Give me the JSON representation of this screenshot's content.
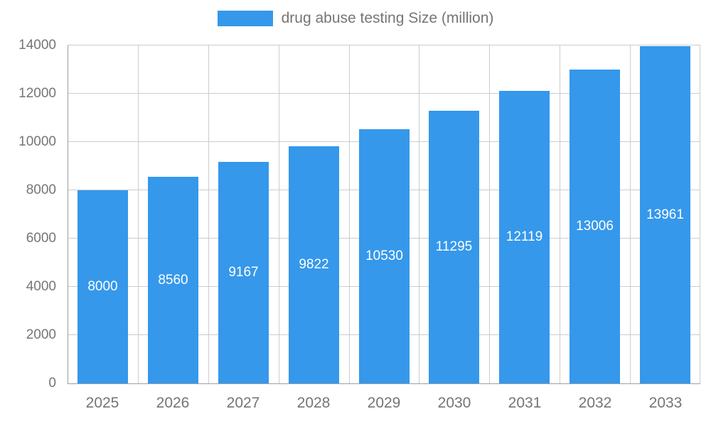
{
  "chart_data": {
    "type": "bar",
    "title": "",
    "legend": {
      "label": "drug abuse testing Size (million)",
      "position": "top"
    },
    "categories": [
      "2025",
      "2026",
      "2027",
      "2028",
      "2029",
      "2030",
      "2031",
      "2032",
      "2033"
    ],
    "values": [
      8000,
      8560,
      9167,
      9822,
      10530,
      11295,
      12119,
      13006,
      13961
    ],
    "value_labels": [
      "8000",
      "8560",
      "9167",
      "9822",
      "10530",
      "11295",
      "12119",
      "13006",
      "13961"
    ],
    "ylim": [
      0,
      14000
    ],
    "yticks": [
      0,
      2000,
      4000,
      6000,
      8000,
      10000,
      12000,
      14000
    ],
    "xlabel": "",
    "ylabel": "",
    "grid": true,
    "colors": {
      "bar": "#3598eb",
      "bar_value_text": "#ffffff",
      "axis_text": "#757575",
      "gridline": "#cccccc",
      "axis_line": "#9e9e9e",
      "background": "#ffffff"
    }
  }
}
